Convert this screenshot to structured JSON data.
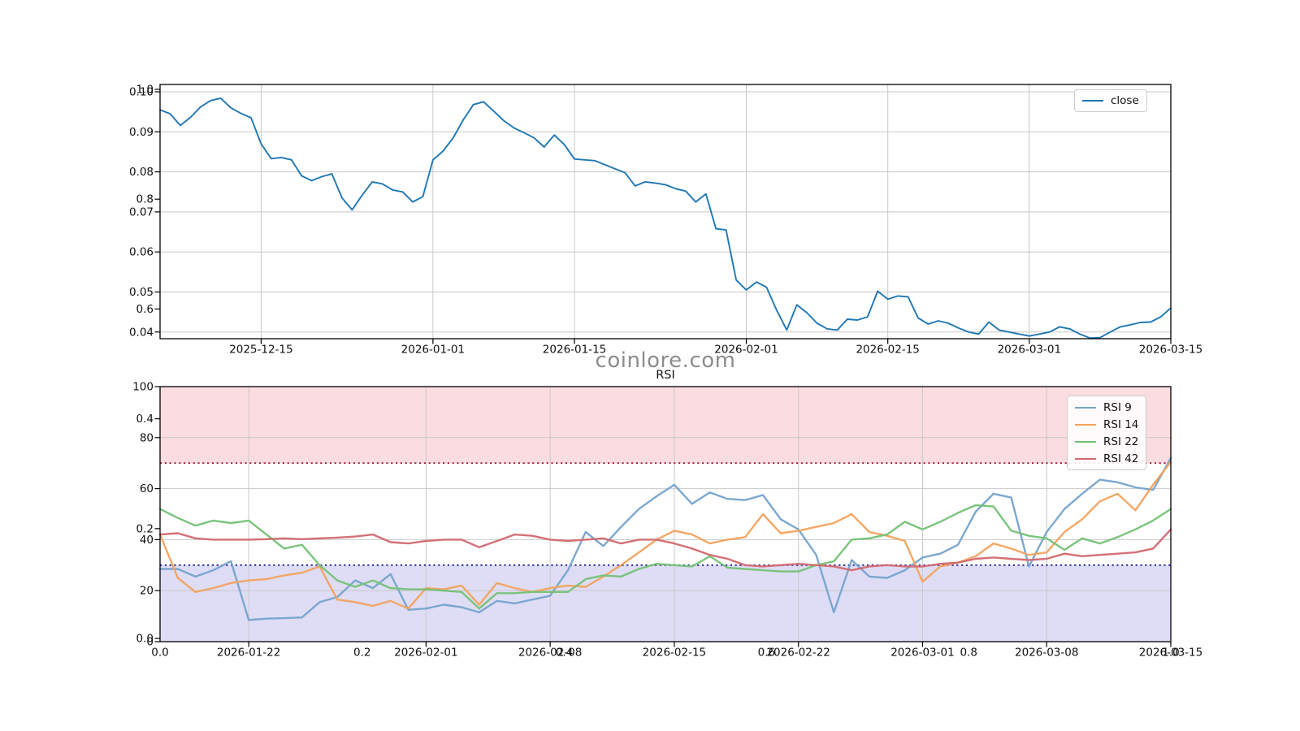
{
  "watermark": "coinlore.com",
  "colors": {
    "close": "#1f77b4",
    "rsi9": "#75a3cc",
    "rsi14": "#f2a25e",
    "rsi22": "#74c175",
    "rsi42": "#d2686e",
    "overbought_fill": "#fbdce1",
    "oversold_fill": "#dfddf6",
    "overbought_line": "#a01f35",
    "oversold_line": "#1c1c9c",
    "grid": "#c8c8c8",
    "spine": "#000000",
    "tick_text": "#111111",
    "watermark_text": "#8c8c8c"
  },
  "overlay_axis": {
    "x_tick_labels": [
      "0.0",
      "0.2",
      "0.4",
      "0.6",
      "0.8",
      "1.0"
    ],
    "y_tick_labels": [
      "0.0",
      "0.2",
      "0.4",
      "0.6",
      "0.8",
      "1.0"
    ]
  },
  "chart_data": [
    {
      "type": "line",
      "name": "price",
      "title": "",
      "legend": [
        "close"
      ],
      "legend_position": "upper right",
      "grid": true,
      "x_start": "2025-12-05",
      "x_end": "2026-03-15",
      "x_tick_labels": [
        "2025-12-15",
        "2026-01-01",
        "2026-01-15",
        "2026-02-01",
        "2026-02-15",
        "2026-03-01",
        "2026-03-15"
      ],
      "x_tick_days": [
        10,
        27,
        41,
        58,
        72,
        86,
        100
      ],
      "y_tick_labels": [
        "0.10",
        "0.09",
        "0.08",
        "0.07",
        "0.06",
        "0.05",
        "0.04"
      ],
      "y_tick_values": [
        0.1,
        0.09,
        0.08,
        0.07,
        0.06,
        0.05,
        0.04
      ],
      "ylim": [
        0.0383,
        0.1018
      ],
      "series": [
        {
          "name": "close",
          "color": "#1f77b4",
          "values": [
            0.0955,
            0.0945,
            0.0916,
            0.0936,
            0.0962,
            0.0978,
            0.0984,
            0.096,
            0.0946,
            0.0935,
            0.087,
            0.0833,
            0.0836,
            0.083,
            0.079,
            0.0778,
            0.0788,
            0.0795,
            0.0735,
            0.0705,
            0.0742,
            0.0775,
            0.077,
            0.0755,
            0.075,
            0.0725,
            0.0738,
            0.083,
            0.0852,
            0.0885,
            0.093,
            0.0968,
            0.0975,
            0.0952,
            0.0928,
            0.091,
            0.0898,
            0.0885,
            0.0862,
            0.0892,
            0.0868,
            0.0832,
            0.083,
            0.0828,
            0.0818,
            0.0808,
            0.0798,
            0.0765,
            0.0775,
            0.0772,
            0.0768,
            0.0758,
            0.0752,
            0.0725,
            0.0745,
            0.0658,
            0.0655,
            0.053,
            0.0505,
            0.0525,
            0.0512,
            0.0455,
            0.0405,
            0.0468,
            0.0448,
            0.0422,
            0.0408,
            0.0405,
            0.0432,
            0.043,
            0.0438,
            0.0502,
            0.0482,
            0.049,
            0.0488,
            0.0435,
            0.042,
            0.0428,
            0.0422,
            0.041,
            0.04,
            0.0395,
            0.0425,
            0.0405,
            0.04,
            0.0395,
            0.039,
            0.0395,
            0.04,
            0.0413,
            0.0408,
            0.0395,
            0.0385,
            0.0386,
            0.04,
            0.0413,
            0.0418,
            0.0424,
            0.0425,
            0.0438,
            0.046
          ]
        }
      ]
    },
    {
      "type": "line",
      "name": "rsi",
      "title": "RSI",
      "legend": [
        "RSI 9",
        "RSI 14",
        "RSI 22",
        "RSI 42"
      ],
      "legend_position": "upper right",
      "grid": true,
      "ylim": [
        0,
        100
      ],
      "overbought_level": 70,
      "oversold_level": 30,
      "x_start": "2026-01-17",
      "x_end": "2026-03-15",
      "x_tick_labels": [
        "2026-01-22",
        "2026-02-01",
        "2026-02-08",
        "2026-02-15",
        "2026-02-22",
        "2026-03-01",
        "2026-03-08",
        "2026-03-15"
      ],
      "x_tick_days": [
        5,
        15,
        22,
        29,
        36,
        43,
        50,
        57
      ],
      "y_tick_labels": [
        "100",
        "80",
        "60",
        "40",
        "20",
        "0"
      ],
      "y_tick_values": [
        100,
        80,
        60,
        40,
        20,
        0
      ],
      "series": [
        {
          "name": "RSI 9",
          "color": "#75a3cc",
          "values": [
            28.5,
            28.5,
            25.5,
            28,
            31.5,
            8.5,
            9,
            9.2,
            9.5,
            15.5,
            17.5,
            24,
            21,
            26.5,
            12.5,
            13,
            14.5,
            13.5,
            11.5,
            16,
            15,
            16.5,
            18,
            28,
            43,
            37.5,
            45,
            52,
            57,
            61.5,
            54,
            58.5,
            56,
            55.5,
            57.5,
            48,
            44,
            34,
            11.5,
            32,
            25.5,
            25,
            28,
            33,
            34.5,
            38,
            51,
            58,
            56.5,
            29.5,
            43,
            52,
            58,
            63.5,
            62.5,
            60.5,
            59.5,
            72
          ]
        },
        {
          "name": "RSI 14",
          "color": "#f2a25e",
          "values": [
            42,
            25,
            19.5,
            21,
            23,
            24,
            24.5,
            26,
            27,
            29.5,
            16.5,
            15.5,
            14,
            16,
            13,
            21,
            20.5,
            22,
            14.5,
            23,
            21,
            19.5,
            21,
            22,
            21.5,
            25.5,
            30,
            35,
            40,
            43.5,
            42,
            38.5,
            40,
            41,
            50,
            42.5,
            43.5,
            45,
            46.5,
            50,
            43,
            41.5,
            39.5,
            23.5,
            29.5,
            31,
            33.5,
            38.5,
            36.5,
            34,
            35,
            43,
            48,
            55,
            58,
            51.5,
            61.5,
            70.5
          ]
        },
        {
          "name": "RSI 22",
          "color": "#74c175",
          "values": [
            52,
            48.5,
            45.5,
            47.5,
            46.5,
            47.5,
            42,
            36.5,
            38,
            30,
            24,
            21.5,
            24,
            21,
            20.5,
            20.5,
            20,
            19.5,
            13,
            19,
            19,
            19.5,
            19.5,
            19.5,
            24.5,
            26,
            25.5,
            28.5,
            30.5,
            30,
            29.5,
            33.5,
            29,
            28.5,
            28,
            27.5,
            27.5,
            30,
            31.5,
            40,
            40.5,
            42,
            47,
            44,
            47,
            50.5,
            53.5,
            53,
            43.5,
            41.5,
            40.5,
            36,
            40.5,
            38.5,
            41,
            44,
            47.5,
            52
          ]
        },
        {
          "name": "RSI 42",
          "color": "#d2686e",
          "values": [
            42,
            42.5,
            40.5,
            40,
            40,
            40,
            40.2,
            40.5,
            40.2,
            40.5,
            40.8,
            41.2,
            42,
            39,
            38.5,
            39.5,
            40,
            40,
            37,
            39.5,
            42,
            41.5,
            40,
            39.5,
            40,
            40.5,
            38.5,
            40,
            40,
            38.5,
            36.5,
            34,
            32.5,
            30,
            29.5,
            30,
            30.5,
            30,
            29.5,
            28,
            29.5,
            30,
            29.5,
            29.5,
            30.5,
            31,
            32.5,
            33,
            32.5,
            32,
            32.5,
            34.5,
            33.5,
            34,
            34.5,
            35,
            36.5,
            44
          ]
        }
      ]
    }
  ]
}
